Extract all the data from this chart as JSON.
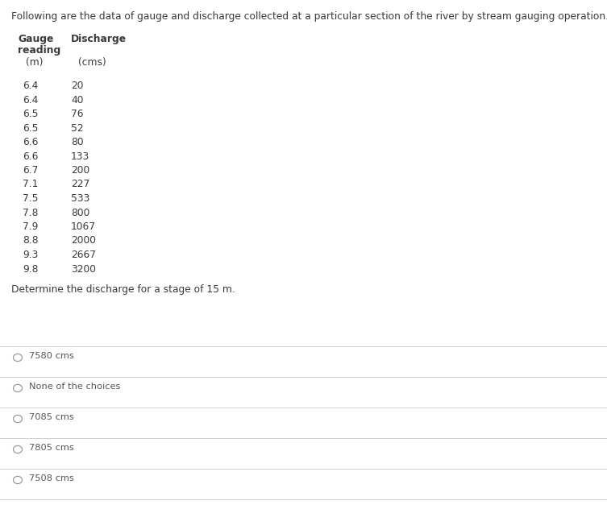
{
  "intro_text": "Following are the data of gauge and discharge collected at a particular section of the river by stream gauging operation.",
  "col1_header_line1": "Gauge",
  "col1_header_line2": "reading",
  "col1_header_line3": "(m)",
  "col2_header_line1": "Discharge",
  "col2_header_line2": "",
  "col2_header_line3": "(cms)",
  "gauge_readings": [
    "6.4",
    "6.4",
    "6.5",
    "6.5",
    "6.6",
    "6.6",
    "6.7",
    "7.1",
    "7.5",
    "7.8",
    "7.9",
    "8.8",
    "9.3",
    "9.8"
  ],
  "discharges": [
    "20",
    "40",
    "76",
    "52",
    "80",
    "133",
    "200",
    "227",
    "533",
    "800",
    "1067",
    "2000",
    "2667",
    "3200"
  ],
  "question_text": "Determine the discharge for a stage of 15 m.",
  "options": [
    "7580 cms",
    "None of the choices",
    "7085 cms",
    "7805 cms",
    "7508 cms"
  ],
  "bg_color": "#ffffff",
  "text_color": "#3a3a3a",
  "option_text_color": "#555555",
  "divider_color": "#d0d0d0",
  "intro_fontsize": 8.8,
  "header_fontsize": 8.8,
  "data_fontsize": 8.8,
  "question_fontsize": 8.8,
  "option_fontsize": 8.2
}
